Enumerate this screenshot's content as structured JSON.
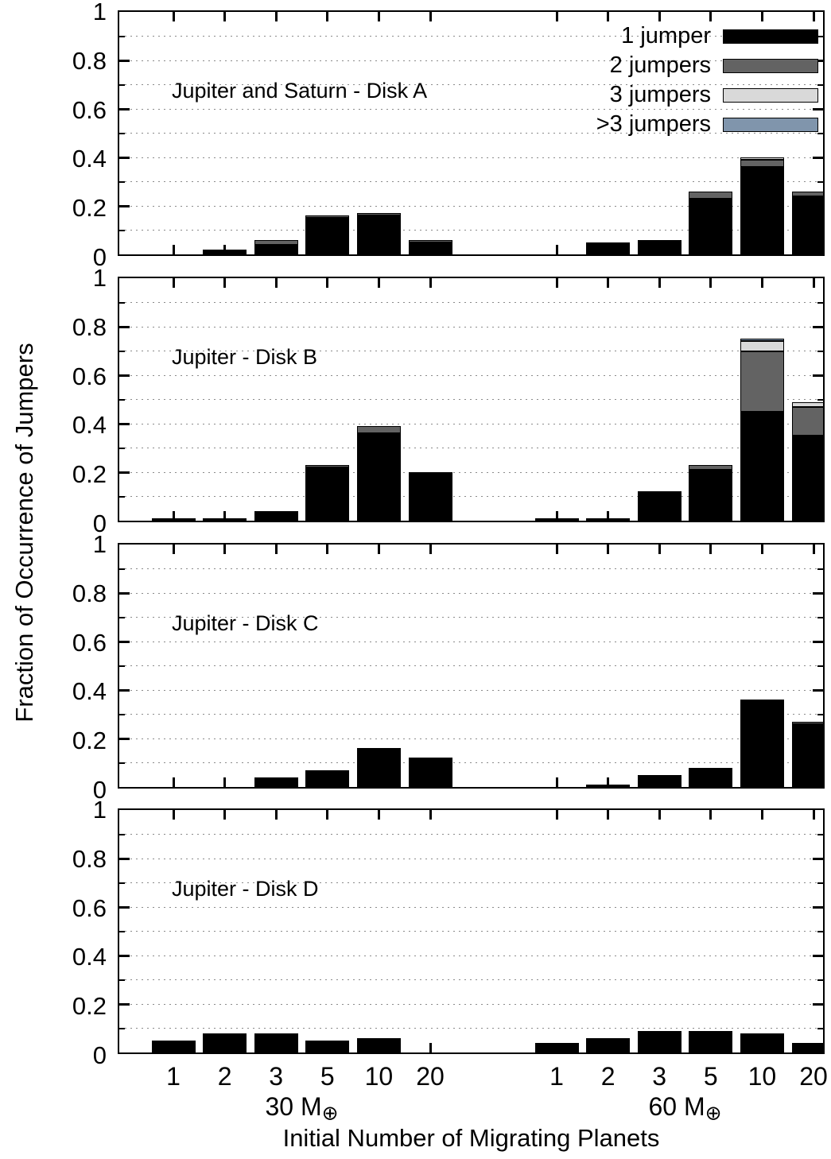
{
  "figure": {
    "xlabel": "Initial Number of Migrating Planets",
    "ylabel": "Fraction of Occurrence of Jumpers",
    "background": "#ffffff",
    "axis_color": "#000000",
    "grid_color": "#8a8a8a"
  },
  "legend": {
    "position": "top-right",
    "entries": [
      {
        "label": "1 jumper",
        "color": "#000000"
      },
      {
        "label": "2 jumpers",
        "color": "#636363"
      },
      {
        "label": "3 jumpers",
        "color": "#d9d9d9"
      },
      {
        "label": ">3 jumpers",
        "color": "#8095ac"
      }
    ]
  },
  "x_axis": {
    "tick_labels": [
      "1",
      "2",
      "3",
      "5",
      "10",
      "20",
      "1",
      "2",
      "3",
      "5",
      "10",
      "20"
    ],
    "group_labels": [
      {
        "main": "30 M",
        "sub": "⊕"
      },
      {
        "main": "60 M",
        "sub": "⊕"
      }
    ]
  },
  "y_axis": {
    "ticks": [
      0,
      0.2,
      0.4,
      0.6,
      0.8,
      1
    ],
    "tick_labels": [
      "0",
      "0.2",
      "0.4",
      "0.6",
      "0.8",
      "1"
    ],
    "minor_step": 0.1,
    "range": [
      0,
      1
    ]
  },
  "chart_data": [
    {
      "type": "bar",
      "stacked": true,
      "title": "Jupiter and Saturn - Disk A",
      "categories": [
        "1",
        "2",
        "3",
        "5",
        "10",
        "20",
        "1",
        "2",
        "3",
        "5",
        "10",
        "20"
      ],
      "ylim": [
        0,
        1
      ],
      "grid": true,
      "series": [
        {
          "name": "1 jumper",
          "values": [
            0,
            0.02,
            0.04,
            0.15,
            0.16,
            0.05,
            0,
            0.05,
            0.06,
            0.23,
            0.36,
            0.24
          ]
        },
        {
          "name": "2 jumpers",
          "values": [
            0,
            0,
            0.02,
            0.01,
            0.01,
            0.01,
            0,
            0,
            0,
            0.03,
            0.03,
            0.02
          ]
        },
        {
          "name": "3 jumpers",
          "values": [
            0,
            0,
            0,
            0,
            0,
            0,
            0,
            0,
            0,
            0,
            0.01,
            0
          ]
        },
        {
          "name": ">3 jumpers",
          "values": [
            0,
            0,
            0,
            0,
            0,
            0,
            0,
            0,
            0,
            0,
            0,
            0
          ]
        }
      ]
    },
    {
      "type": "bar",
      "stacked": true,
      "title": "Jupiter - Disk B",
      "categories": [
        "1",
        "2",
        "3",
        "5",
        "10",
        "20",
        "1",
        "2",
        "3",
        "5",
        "10",
        "20"
      ],
      "ylim": [
        0,
        1
      ],
      "grid": true,
      "series": [
        {
          "name": "1 jumper",
          "values": [
            0.01,
            0.01,
            0.04,
            0.22,
            0.36,
            0.2,
            0.01,
            0.01,
            0.12,
            0.21,
            0.45,
            0.35
          ]
        },
        {
          "name": "2 jumpers",
          "values": [
            0,
            0,
            0,
            0.01,
            0.03,
            0,
            0,
            0,
            0,
            0.02,
            0.25,
            0.12
          ]
        },
        {
          "name": "3 jumpers",
          "values": [
            0,
            0,
            0,
            0,
            0,
            0,
            0,
            0,
            0,
            0,
            0.04,
            0.02
          ]
        },
        {
          "name": ">3 jumpers",
          "values": [
            0,
            0,
            0,
            0,
            0,
            0,
            0,
            0,
            0,
            0,
            0.01,
            0
          ]
        }
      ]
    },
    {
      "type": "bar",
      "stacked": true,
      "title": "Jupiter - Disk C",
      "categories": [
        "1",
        "2",
        "3",
        "5",
        "10",
        "20",
        "1",
        "2",
        "3",
        "5",
        "10",
        "20"
      ],
      "ylim": [
        0,
        1
      ],
      "grid": true,
      "series": [
        {
          "name": "1 jumper",
          "values": [
            0,
            0,
            0.04,
            0.07,
            0.16,
            0.12,
            0,
            0.01,
            0.05,
            0.08,
            0.36,
            0.26
          ]
        },
        {
          "name": "2 jumpers",
          "values": [
            0,
            0,
            0,
            0,
            0,
            0,
            0,
            0,
            0,
            0,
            0,
            0.01
          ]
        },
        {
          "name": "3 jumpers",
          "values": [
            0,
            0,
            0,
            0,
            0,
            0,
            0,
            0,
            0,
            0,
            0,
            0
          ]
        },
        {
          "name": ">3 jumpers",
          "values": [
            0,
            0,
            0,
            0,
            0,
            0,
            0,
            0,
            0,
            0,
            0,
            0
          ]
        }
      ]
    },
    {
      "type": "bar",
      "stacked": true,
      "title": "Jupiter - Disk D",
      "categories": [
        "1",
        "2",
        "3",
        "5",
        "10",
        "20",
        "1",
        "2",
        "3",
        "5",
        "10",
        "20"
      ],
      "ylim": [
        0,
        1
      ],
      "grid": true,
      "series": [
        {
          "name": "1 jumper",
          "values": [
            0.05,
            0.08,
            0.08,
            0.05,
            0.06,
            0,
            0.04,
            0.06,
            0.09,
            0.09,
            0.08,
            0.04
          ]
        },
        {
          "name": "2 jumpers",
          "values": [
            0,
            0,
            0,
            0,
            0,
            0,
            0,
            0,
            0,
            0,
            0,
            0
          ]
        },
        {
          "name": "3 jumpers",
          "values": [
            0,
            0,
            0,
            0,
            0,
            0,
            0,
            0,
            0,
            0,
            0,
            0
          ]
        },
        {
          "name": ">3 jumpers",
          "values": [
            0,
            0,
            0,
            0,
            0,
            0,
            0,
            0,
            0,
            0,
            0,
            0
          ]
        }
      ]
    }
  ]
}
